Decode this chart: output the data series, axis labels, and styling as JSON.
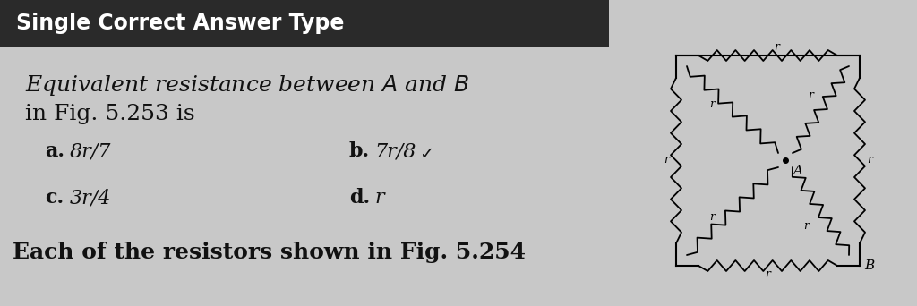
{
  "title": "Single Correct Answer Type",
  "title_bg": "#2a2a2a",
  "title_color": "#ffffff",
  "title_fontsize": 17,
  "bg_color": "#c8c8c8",
  "text_color": "#111111",
  "question_line1": "Equivalent resistance between $A$ and $B$",
  "question_line2": "in Fig. 5.253 is",
  "opt_a_label": "a.",
  "opt_a_val": "8r/7",
  "opt_b_label": "b.",
  "opt_b_val": "7r/8",
  "opt_c_label": "c.",
  "opt_c_val": "3r/4",
  "opt_d_label": "d.",
  "opt_d_val": "r",
  "footer": "Each of the resistors shown in Fig. 5.254",
  "option_fontsize": 15,
  "question_fontsize": 15
}
